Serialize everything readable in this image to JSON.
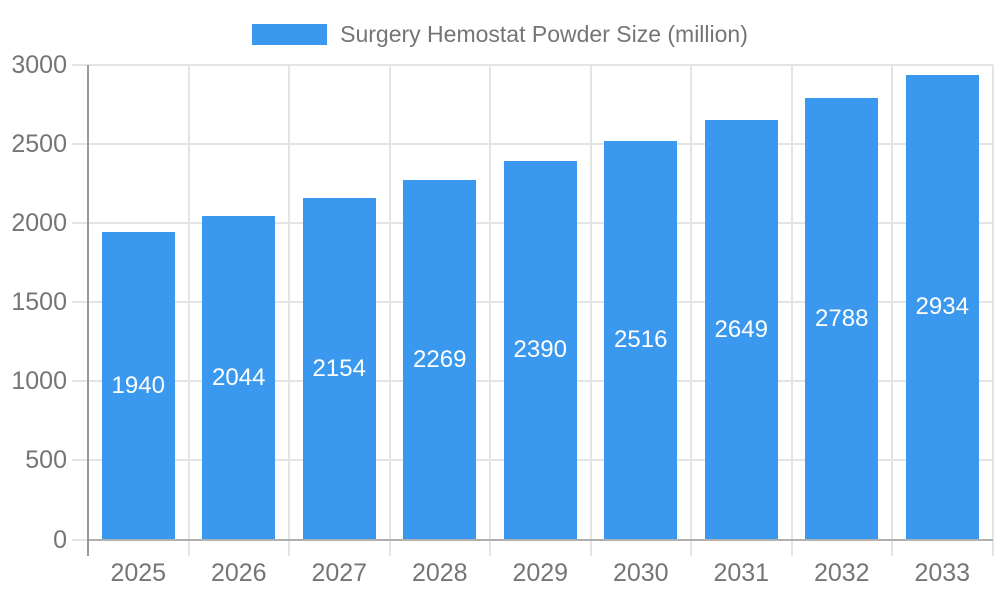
{
  "chart_data": {
    "type": "bar",
    "title": "Surgery Hemostat Powder Size (million)",
    "series_name": "Surgery Hemostat Powder Size (million)",
    "categories": [
      "2025",
      "2026",
      "2027",
      "2028",
      "2029",
      "2030",
      "2031",
      "2032",
      "2033"
    ],
    "values": [
      1940,
      2044,
      2154,
      2269,
      2390,
      2516,
      2649,
      2788,
      2934
    ],
    "xlabel": "",
    "ylabel": "",
    "ylim": [
      0,
      3000
    ],
    "yticks": [
      0,
      500,
      1000,
      1500,
      2000,
      2500,
      3000
    ],
    "grid": true,
    "legend_position": "top",
    "value_label_position": "inside-center",
    "colors": {
      "bar": "#3A99EE",
      "bar_value_text": "#FFFFFF",
      "axis_text": "#757575",
      "legend_text": "#757575",
      "gridline": "#E4E4E4",
      "y_axis_line": "#999999",
      "x_axis_line": "#B0B0B0",
      "background": "#FFFFFF"
    }
  }
}
